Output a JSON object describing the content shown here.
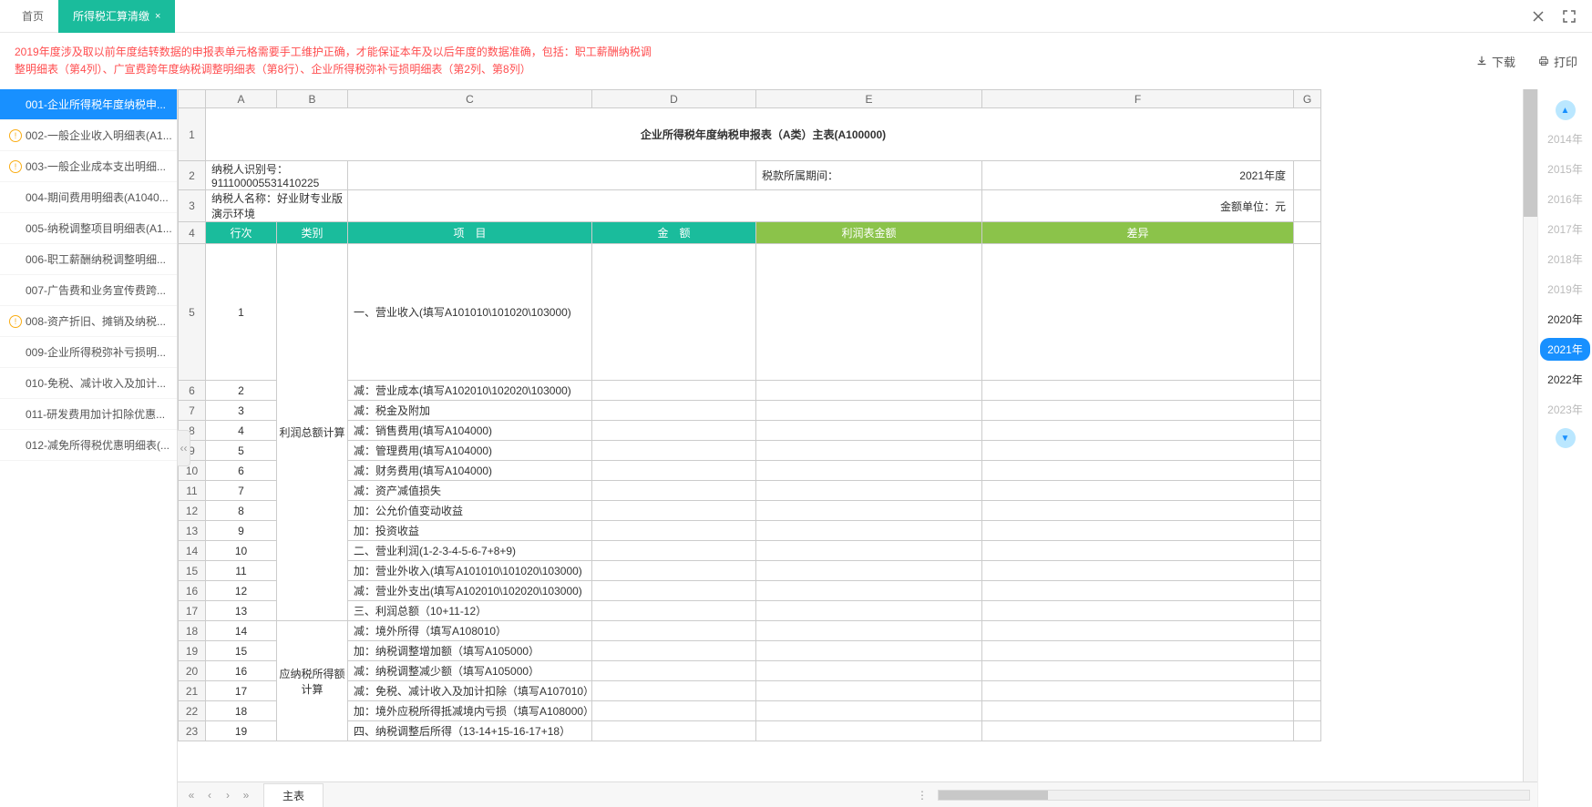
{
  "tabs": {
    "home": "首页",
    "active": "所得税汇算清缴"
  },
  "notice": "2019年度涉及取以前年度结转数据的申报表单元格需要手工维护正确，才能保证本年及以后年度的数据准确，包括：职工薪酬纳税调整明细表（第4列）、广宣费跨年度纳税调整明细表（第8行）、企业所得税弥补亏损明细表（第2列、第8列）",
  "actions": {
    "download": "下载",
    "print": "打印"
  },
  "sidebar": [
    {
      "badge": false,
      "label": "001-企业所得税年度纳税申...",
      "active": true
    },
    {
      "badge": true,
      "label": "002-一般企业收入明细表(A1..."
    },
    {
      "badge": true,
      "label": "003-一般企业成本支出明细..."
    },
    {
      "badge": false,
      "label": "004-期间费用明细表(A1040..."
    },
    {
      "badge": false,
      "label": "005-纳税调整项目明细表(A1..."
    },
    {
      "badge": false,
      "label": "006-职工薪酬纳税调整明细..."
    },
    {
      "badge": false,
      "label": "007-广告费和业务宣传费跨..."
    },
    {
      "badge": true,
      "label": "008-资产折旧、摊销及纳税..."
    },
    {
      "badge": false,
      "label": "009-企业所得税弥补亏损明..."
    },
    {
      "badge": false,
      "label": "010-免税、减计收入及加计..."
    },
    {
      "badge": false,
      "label": "011-研发费用加计扣除优惠..."
    },
    {
      "badge": false,
      "label": "012-减免所得税优惠明细表(..."
    }
  ],
  "columns": [
    "A",
    "B",
    "C",
    "D",
    "E",
    "F",
    "G"
  ],
  "sheet": {
    "title": "企业所得税年度纳税申报表（A类）主表(A100000)",
    "taxpayer_id_label": "纳税人识别号：",
    "taxpayer_id": "911100005531410225",
    "period_label": "税款所属期间：",
    "period_value": "2021年度",
    "taxpayer_name_label": "纳税人名称：",
    "taxpayer_name": "好业财专业版演示环境",
    "unit_label": "金额单位：元",
    "headers": {
      "seq": "行次",
      "category": "类别",
      "item": "项　目",
      "amount": "金　额",
      "profit": "利润表金额",
      "diff": "差异"
    },
    "cat1": "利润总额计算",
    "cat2": "应纳税所得额计算",
    "rows": [
      {
        "n": "1",
        "item": "一、营业收入(填写A101010\\101020\\103000)",
        "tall": true
      },
      {
        "n": "2",
        "item": "减：营业成本(填写A102010\\102020\\103000)"
      },
      {
        "n": "3",
        "item": "减：税金及附加"
      },
      {
        "n": "4",
        "item": "减：销售费用(填写A104000)"
      },
      {
        "n": "5",
        "item": "减：管理费用(填写A104000)"
      },
      {
        "n": "6",
        "item": "减：财务费用(填写A104000)"
      },
      {
        "n": "7",
        "item": "减：资产减值损失"
      },
      {
        "n": "8",
        "item": "加：公允价值变动收益"
      },
      {
        "n": "9",
        "item": "加：投资收益"
      },
      {
        "n": "10",
        "item": "二、营业利润(1-2-3-4-5-6-7+8+9)"
      },
      {
        "n": "11",
        "item": "加：营业外收入(填写A101010\\101020\\103000)"
      },
      {
        "n": "12",
        "item": "减：营业外支出(填写A102010\\102020\\103000)"
      },
      {
        "n": "13",
        "item": "三、利润总额（10+11-12）"
      },
      {
        "n": "14",
        "item": "减：境外所得（填写A108010）"
      },
      {
        "n": "15",
        "item": "加：纳税调整增加额（填写A105000）"
      },
      {
        "n": "16",
        "item": "减：纳税调整减少额（填写A105000）"
      },
      {
        "n": "17",
        "item": "减：免税、减计收入及加计扣除（填写A107010）"
      },
      {
        "n": "18",
        "item": "加：境外应税所得抵减境内亏损（填写A108000）"
      },
      {
        "n": "19",
        "item": "四、纳税调整后所得（13-14+15-16-17+18）"
      }
    ],
    "tab_name": "主表"
  },
  "years": [
    {
      "y": "2014年"
    },
    {
      "y": "2015年"
    },
    {
      "y": "2016年"
    },
    {
      "y": "2017年"
    },
    {
      "y": "2018年"
    },
    {
      "y": "2019年"
    },
    {
      "y": "2020年",
      "enabled": true
    },
    {
      "y": "2021年",
      "enabled": true,
      "active": true
    },
    {
      "y": "2022年",
      "enabled": true
    },
    {
      "y": "2023年"
    }
  ]
}
